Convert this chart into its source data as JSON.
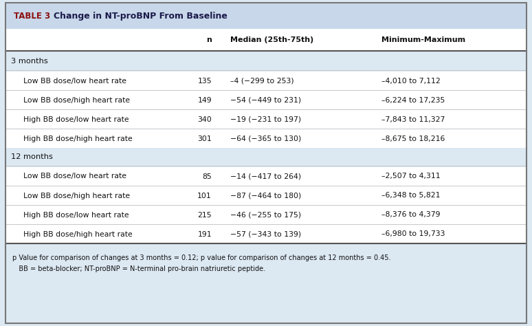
{
  "title_label": "TABLE 3",
  "title_text": "Change in NT-proBNP From Baseline",
  "header_row": [
    "",
    "n",
    "Median (25th-75th)",
    "Minimum-Maximum"
  ],
  "section1_label": "3 months",
  "section2_label": "12 months",
  "rows_3months": [
    [
      "Low BB dose/low heart rate",
      "135",
      "–4 (−299 to 253)",
      "–4,010 to 7,112"
    ],
    [
      "Low BB dose/high heart rate",
      "149",
      "−54 (−449 to 231)",
      "–6,224 to 17,235"
    ],
    [
      "High BB dose/low heart rate",
      "340",
      "−19 (−231 to 197)",
      "–7,843 to 11,327"
    ],
    [
      "High BB dose/high heart rate",
      "301",
      "−64 (−365 to 130)",
      "–8,675 to 18,216"
    ]
  ],
  "rows_12months": [
    [
      "Low BB dose/low heart rate",
      "85",
      "−14 (−417 to 264)",
      "–2,507 to 4,311"
    ],
    [
      "Low BB dose/high heart rate",
      "101",
      "−87 (−464 to 180)",
      "–6,348 to 5,821"
    ],
    [
      "High BB dose/low heart rate",
      "215",
      "−46 (−255 to 175)",
      "–8,376 to 4,379"
    ],
    [
      "High BB dose/high heart rate",
      "191",
      "−57 (−343 to 139)",
      "–6,980 to 19,733"
    ]
  ],
  "footnote_line1": "p Value for comparison of changes at 3 months = 0.12; p value for comparison of changes at 12 months = 0.45.",
  "footnote_line2": "   BB = beta-blocker; NT-proBNP = N-terminal pro-brain natriuretic peptide.",
  "bg_light_blue": "#dce8f2",
  "title_bg": "#c8d8ea",
  "white": "#ffffff",
  "title_label_color": "#8b1010",
  "title_text_color": "#1a1a4a",
  "text_color": "#111111",
  "border_color": "#777777",
  "sep_thick_color": "#555555",
  "sep_thin_color": "#bbbbbb"
}
